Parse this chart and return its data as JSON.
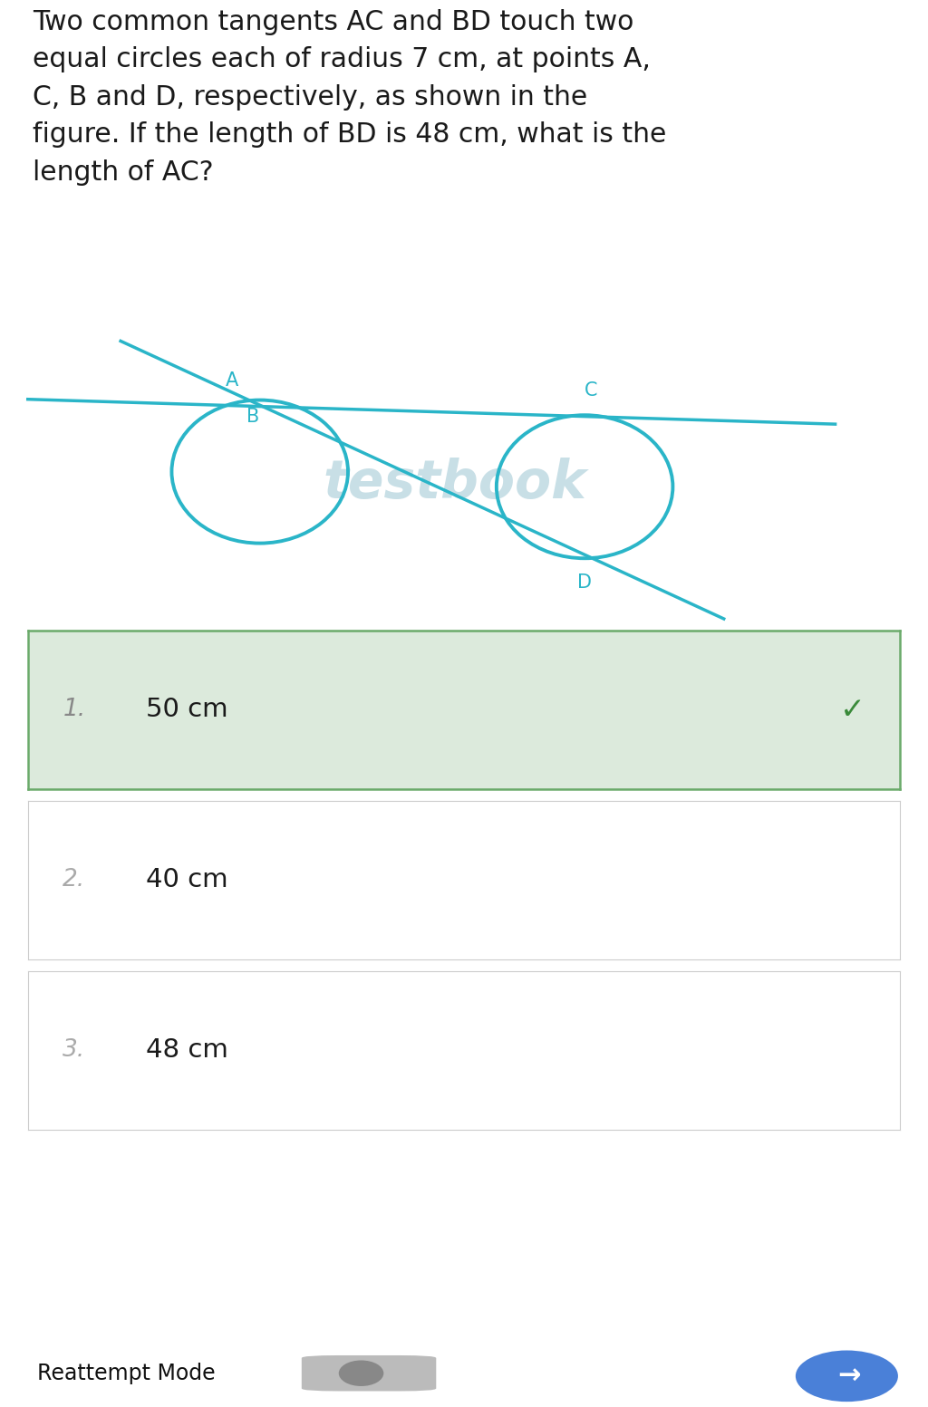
{
  "title_text": "Two common tangents AC and BD touch two\nequal circles each of radius 7 cm, at points A,\nC, B and D, respectively, as shown in the\nfigure. If the length of BD is 48 cm, what is the\nlength of AC?",
  "bg_color": "#ffffff",
  "page_bg": "#eeeef3",
  "circle_color": "#2ab5c8",
  "tangent_line_color": "#2ab5c8",
  "watermark_text": "testbook",
  "watermark_color": "#c8dfe6",
  "label_color": "#2ab5c8",
  "options": [
    {
      "number": "1.",
      "text": "50 cm",
      "correct": true
    },
    {
      "number": "2.",
      "text": "40 cm",
      "correct": false
    },
    {
      "number": "3.",
      "text": "48 cm",
      "correct": false
    }
  ],
  "option_correct_bg": "#dceadc",
  "option_correct_border": "#6aaa6a",
  "option_bg": "#ffffff",
  "option_border": "#cccccc",
  "checkmark_color": "#3a8a3a",
  "option_number_color_correct": "#888888",
  "option_number_color": "#aaaaaa",
  "option_text_color": "#1a1a1a",
  "reattempt_text": "Reattempt Mode",
  "reattempt_text_color": "#111111",
  "toggle_track_color": "#bbbbbb",
  "toggle_thumb_color": "#888888",
  "arrow_button_color": "#4a80d8",
  "divider_color": "#d8d8e0",
  "figure_panel_bg": "#ffffff"
}
